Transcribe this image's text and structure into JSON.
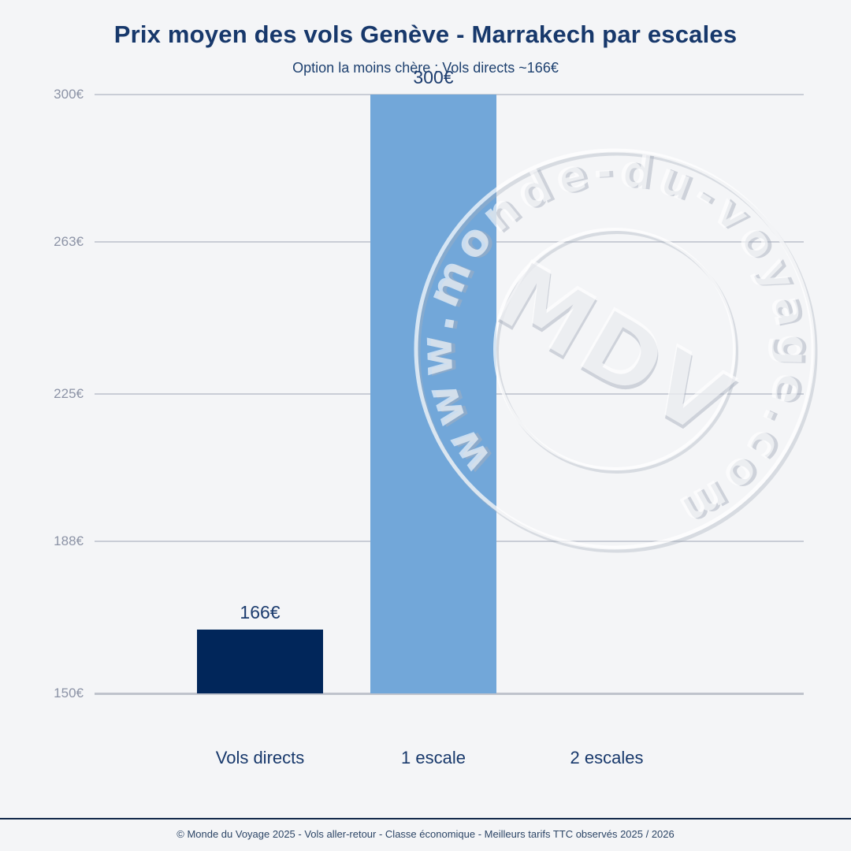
{
  "title": "Prix moyen des vols Genève - Marrakech par escales",
  "subtitle": "Option la moins chère : Vols directs ~166€",
  "watermark": {
    "url_text": "www.monde-du-voyage.com",
    "center_text": "MDV"
  },
  "footer": {
    "text": "© Monde du Voyage 2025 - Vols aller-retour - Classe économique - Meilleurs tarifs TTC observés 2025 / 2026"
  },
  "colors": {
    "background": "#f4f5f7",
    "title_navy": "#17386b",
    "bar_dark_navy": "#01265a",
    "bar_light_blue": "#72a7d9",
    "ytick_gray": "#8c93a6",
    "gridline": "#c9cdd6",
    "footer_line_navy": "#12294a"
  },
  "chart_data": {
    "type": "bar",
    "title": "Prix moyen des vols Genève - Marrakech par escales",
    "subtitle": "Option la moins chère : Vols directs ~166€",
    "categories": [
      "Vols directs",
      "1 escale",
      "2 escales"
    ],
    "values": [
      166,
      300,
      null
    ],
    "bar_labels": [
      "166€",
      "300€",
      ""
    ],
    "bar_colors": [
      "#01265a",
      "#72a7d9",
      null
    ],
    "unit": "€",
    "yticks": [
      "150€",
      "188€",
      "225€",
      "263€",
      "300€"
    ],
    "ytick_values": [
      150,
      188,
      225,
      263,
      300
    ],
    "ylim": [
      150,
      300
    ],
    "grid": true,
    "legend": false
  }
}
